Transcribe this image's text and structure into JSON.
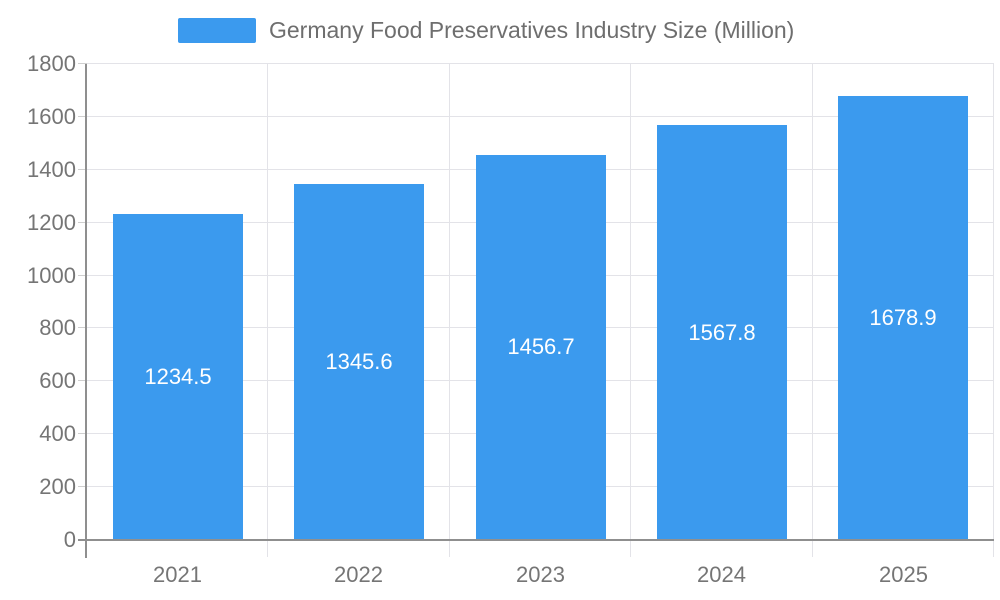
{
  "chart_data": {
    "type": "bar",
    "title": "Germany Food Preservatives Industry Size (Million)",
    "categories": [
      "2021",
      "2022",
      "2023",
      "2024",
      "2025"
    ],
    "values": [
      1234.5,
      1345.6,
      1456.7,
      1567.8,
      1678.9
    ],
    "data_labels": [
      "1234.5",
      "1345.6",
      "1456.7",
      "1567.8",
      "1678.9"
    ],
    "xlabel": "",
    "ylabel": "",
    "ylim": [
      0,
      1800
    ],
    "yticks": [
      0,
      200,
      400,
      600,
      800,
      1000,
      1200,
      1400,
      1600,
      1800
    ],
    "grid": "on",
    "legend": {
      "position": "top",
      "entries": [
        "Germany Food Preservatives Industry Size (Million)"
      ]
    },
    "colors": {
      "bar": "#3b9aee",
      "value_label": "#ffffff",
      "axis_line": "#8f8f8f",
      "gridline": "#e3e3e8",
      "tick": "#cfcfcf",
      "axis_text": "#757575",
      "legend_text": "#6e6e6e",
      "background": "#ffffff"
    }
  }
}
